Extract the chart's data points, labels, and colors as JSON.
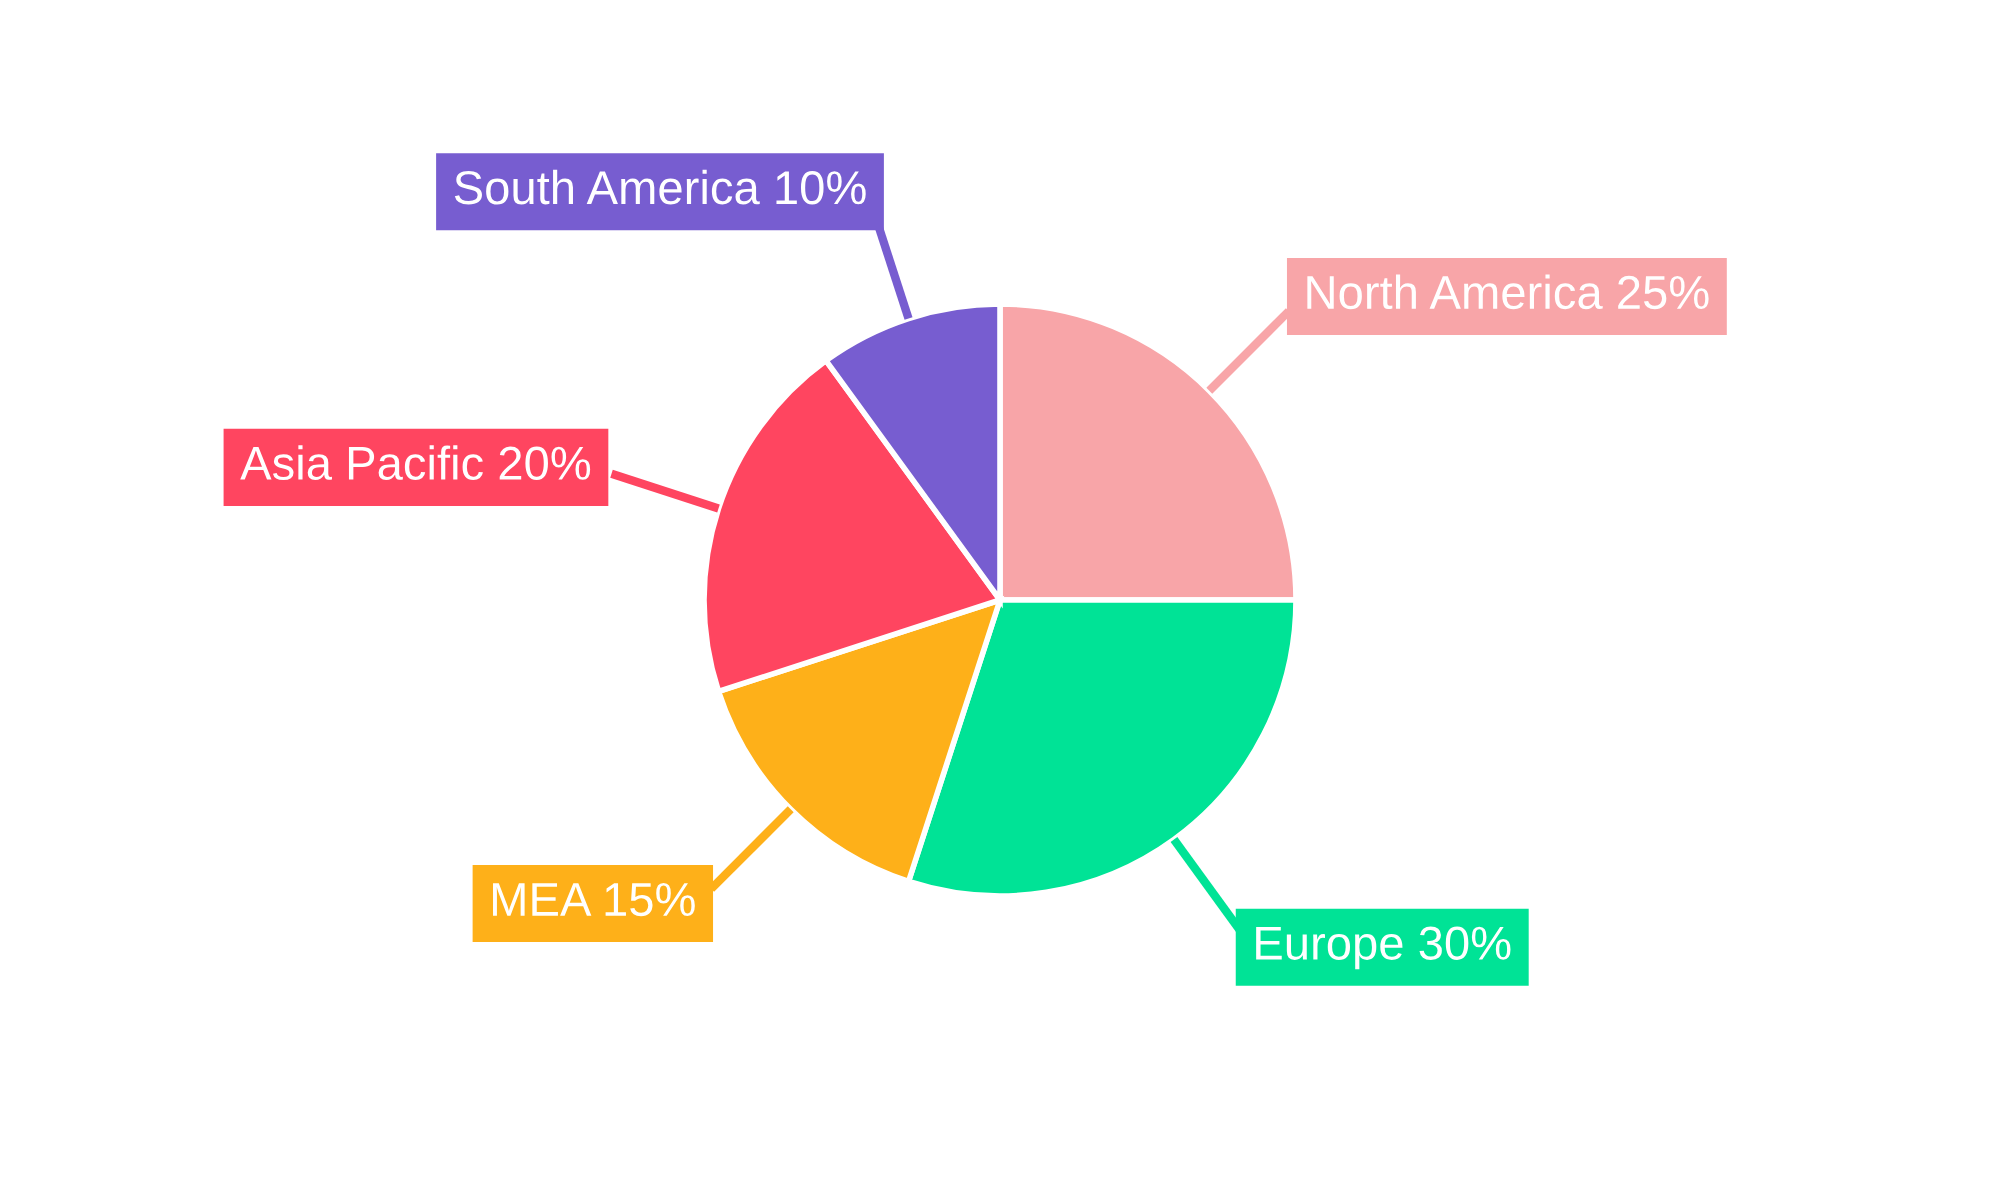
{
  "chart_data": {
    "type": "pie",
    "categories": [
      "North America",
      "Europe",
      "MEA",
      "Asia Pacific",
      "South America"
    ],
    "values": [
      25,
      30,
      15,
      20,
      10
    ],
    "value_labels": [
      "25%",
      "30%",
      "15%",
      "20%",
      "10%"
    ],
    "colors": [
      "#f8a5a8",
      "#00e396",
      "#feb019",
      "#ff4560",
      "#775dd0"
    ],
    "legend": false
  }
}
